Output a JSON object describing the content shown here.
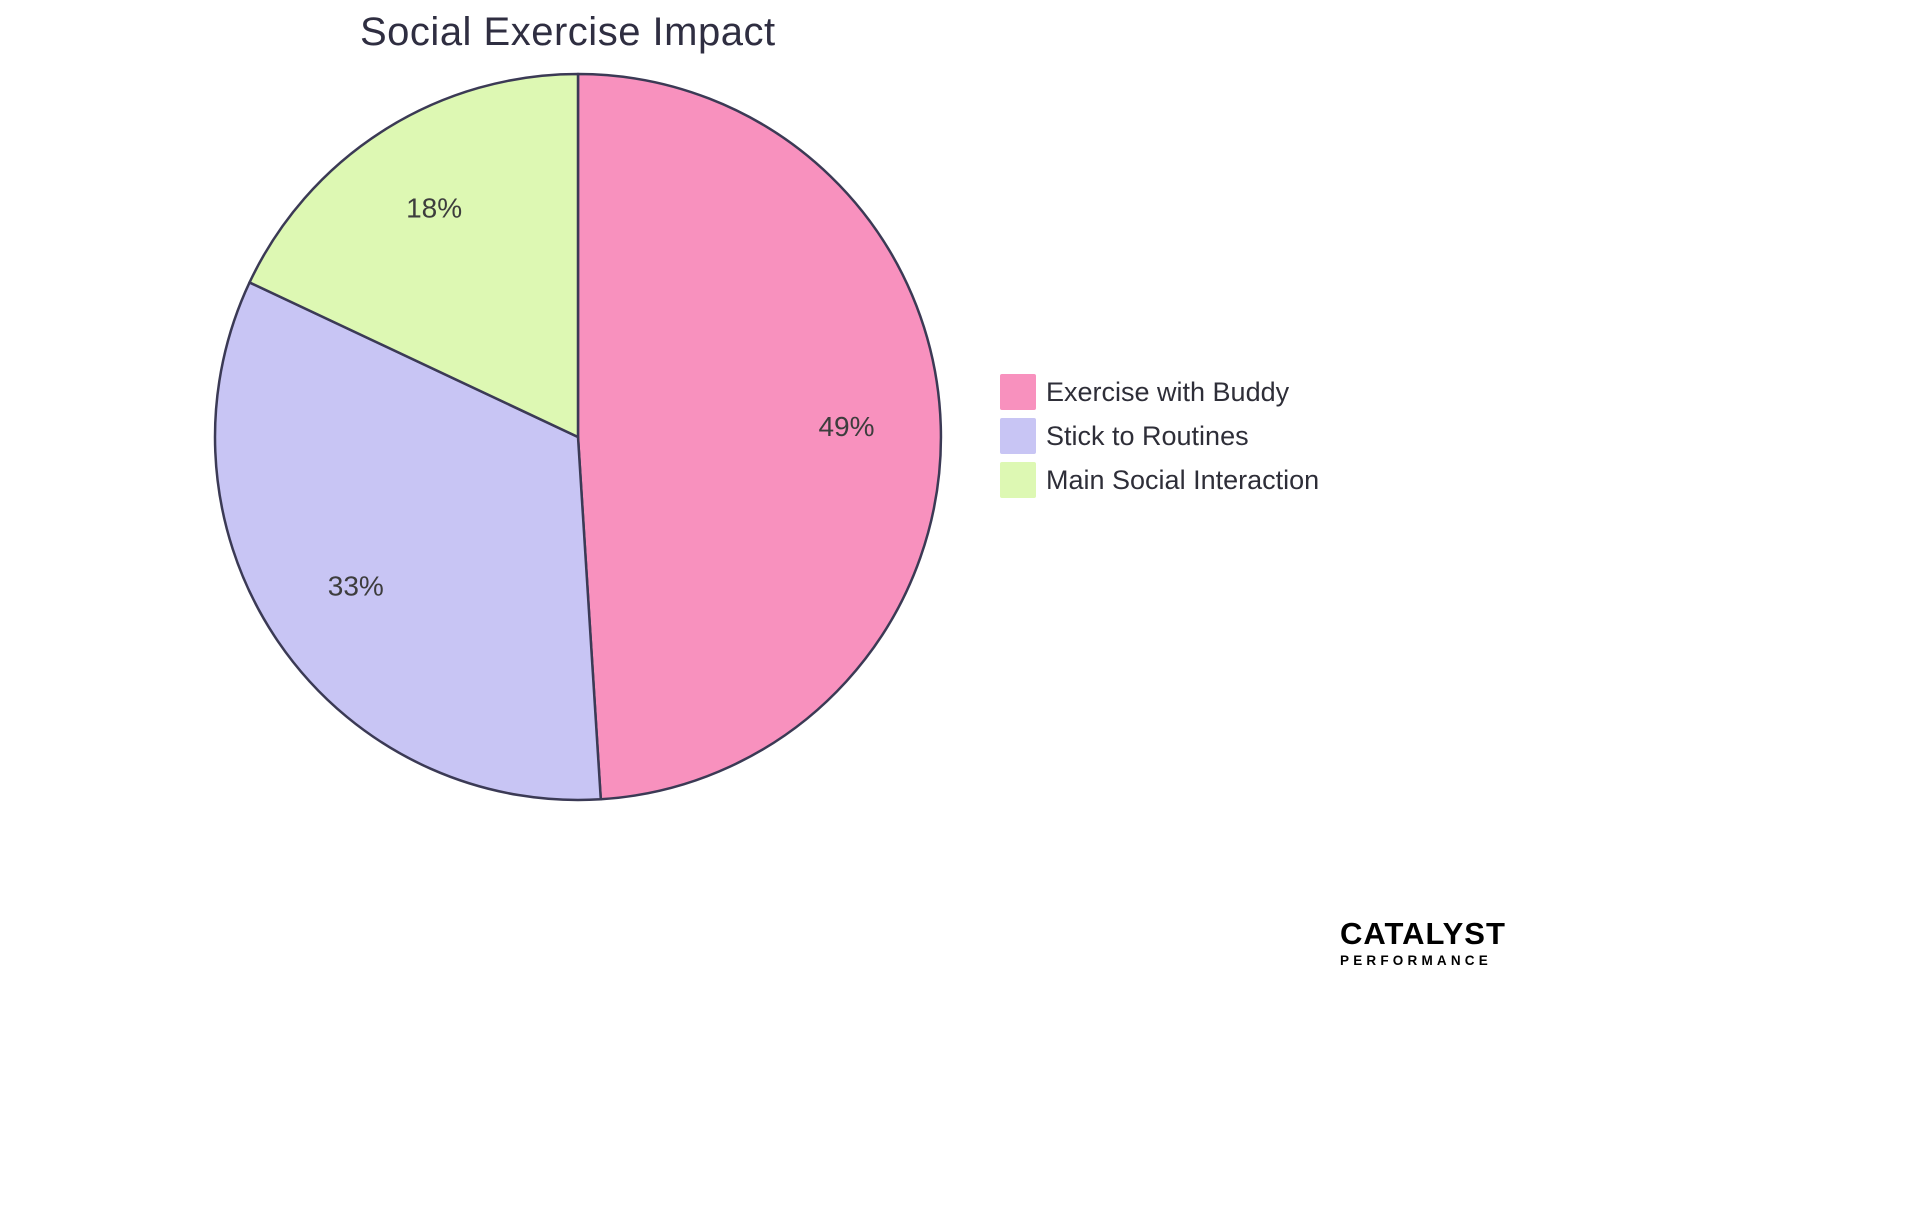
{
  "title": "Social Exercise Impact",
  "chart_data": {
    "type": "pie",
    "title": "Social Exercise Impact",
    "categories": [
      "Exercise with Buddy",
      "Stick to Routines",
      "Main Social Interaction"
    ],
    "values": [
      49,
      33,
      18
    ],
    "value_labels": [
      "49%",
      "33%",
      "18%"
    ],
    "colors": [
      "#F891BE",
      "#C8C5F4",
      "#DDF8B3"
    ],
    "slice_border_color": "#3B3A55",
    "label_color": "#3D3D3D",
    "start_angle": 0,
    "direction": "clockwise",
    "legend_position": "right",
    "background": "#FFFFFF"
  },
  "legend": {
    "items": [
      {
        "label": "Exercise with Buddy",
        "color": "#F891BE"
      },
      {
        "label": "Stick to Routines",
        "color": "#C8C5F4"
      },
      {
        "label": "Main Social Interaction",
        "color": "#DDF8B3"
      }
    ]
  },
  "branding": {
    "name": "CATALYST",
    "tagline": "PERFORMANCE"
  }
}
